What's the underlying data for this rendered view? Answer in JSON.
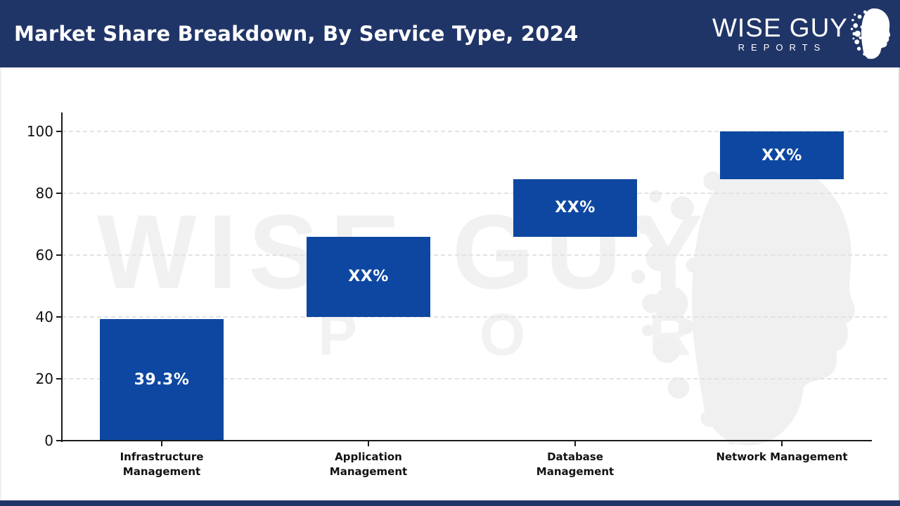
{
  "header": {
    "title": "Market Share Breakdown, By Service Type, 2024",
    "logo": {
      "wordmark": "WISE GUY",
      "subtext": "REPORTS"
    }
  },
  "watermark": {
    "line1": "WISE GUY",
    "line2": "P O R T S"
  },
  "colors": {
    "header_bg": "#203567",
    "footer_bg": "#203567",
    "bar": "#0d47a1",
    "grid": "#e2e2e2",
    "axis": "#1a1a1a",
    "watermark": "#f1f1f1"
  },
  "chart_data": {
    "type": "bar",
    "subtype": "waterfall",
    "title": "Market Share Breakdown, By Service Type, 2024",
    "xlabel": "",
    "ylabel": "",
    "categories": [
      "Infrastructure Management",
      "Application Management",
      "Database Management",
      "Network Management"
    ],
    "category_label_lines": [
      [
        "Infrastructure",
        "Management"
      ],
      [
        "Application",
        "Management"
      ],
      [
        "Database",
        "Management"
      ],
      [
        "Network Management"
      ]
    ],
    "series": [
      {
        "name": "Infrastructure Management",
        "start": 0,
        "end": 39.3,
        "value_label": "39.3%"
      },
      {
        "name": "Application Management",
        "start": 40,
        "end": 66,
        "value_label": "XX%"
      },
      {
        "name": "Database Management",
        "start": 66,
        "end": 84.5,
        "value_label": "XX%"
      },
      {
        "name": "Network Management",
        "start": 84.5,
        "end": 100,
        "value_label": "XX%"
      }
    ],
    "yticks": [
      0,
      20,
      40,
      60,
      80,
      100
    ],
    "ylim": [
      0,
      106
    ],
    "grid": "horizontal-dashed",
    "legend": "none"
  }
}
